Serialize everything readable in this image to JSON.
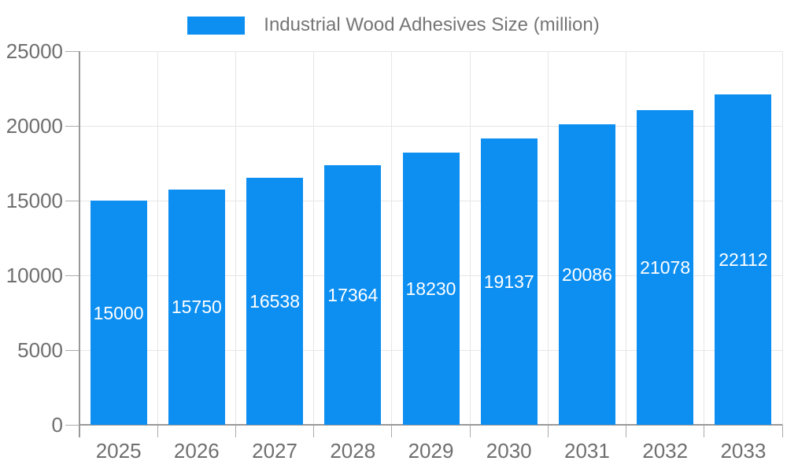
{
  "legend": {
    "label": "Industrial Wood Adhesives Size (million)"
  },
  "chart_data": {
    "type": "bar",
    "title": "Industrial Wood Adhesives Size (million)",
    "categories": [
      "2025",
      "2026",
      "2027",
      "2028",
      "2029",
      "2030",
      "2031",
      "2032",
      "2033"
    ],
    "series": [
      {
        "name": "Industrial Wood Adhesives Size (million)",
        "values": [
          15000,
          15750,
          16538,
          17364,
          18230,
          19137,
          20086,
          21078,
          22112
        ]
      }
    ],
    "bar_labels": [
      15000,
      15750,
      16538,
      17364,
      18230,
      19137,
      20086,
      21078,
      22112
    ],
    "xlabel": "",
    "ylabel": "",
    "ylim": [
      0,
      25000
    ],
    "yticks": [
      0,
      5000,
      10000,
      15000,
      20000,
      25000
    ],
    "grid": true,
    "legend_position": "top-center",
    "colors": {
      "bar": "#0d8ff2",
      "bar_label": "#ffffff",
      "grid": "#e6e6e6",
      "axis": "#999999",
      "tick": "#ababab",
      "tick_label": "#6f6f6f",
      "legend_label": "#757575",
      "background": "#ffffff"
    }
  }
}
